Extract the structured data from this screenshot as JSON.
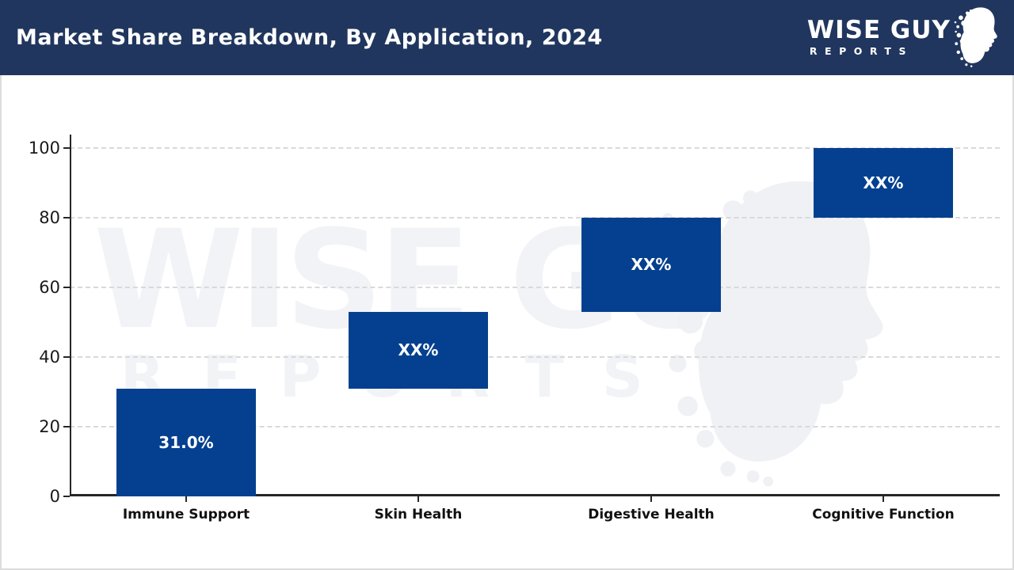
{
  "header": {
    "title": "Market Share Breakdown, By Application, 2024",
    "logo": {
      "brand_line1": "WISE GUY",
      "brand_line2": "REPORTS"
    }
  },
  "watermark": {
    "line1": "WISE GUY",
    "line2": "REPORTS"
  },
  "chart_data": {
    "type": "bar",
    "subtype": "floating-segment-waterfall",
    "title": "Market Share Breakdown, By Application, 2024",
    "categories": [
      "Immune Support",
      "Skin Health",
      "Digestive Health",
      "Cognitive Function"
    ],
    "segments": [
      {
        "category": "Immune Support",
        "start": 0,
        "end": 31,
        "value": 31.0,
        "label": "31.0%"
      },
      {
        "category": "Skin Health",
        "start": 31,
        "end": 53,
        "value": 22.0,
        "label": "XX%"
      },
      {
        "category": "Digestive Health",
        "start": 53,
        "end": 80,
        "value": 27.0,
        "label": "XX%"
      },
      {
        "category": "Cognitive Function",
        "start": 80,
        "end": 100,
        "value": 20.0,
        "label": "XX%"
      }
    ],
    "ylim": [
      0,
      100
    ],
    "yticks": [
      0,
      20,
      40,
      60,
      80,
      100
    ],
    "xlabel": "",
    "ylabel": "",
    "legend": "none",
    "grid": {
      "axis": "y",
      "style": "dashed",
      "color": "#d9d9d9"
    },
    "bar_color": "#04408f",
    "bar_label_color": "#ffffff",
    "axis_color": "#262626",
    "tick_label_color": "#1a1a1a",
    "header_bg_color": "#20365e",
    "page_bg_color": "#ffffff"
  }
}
